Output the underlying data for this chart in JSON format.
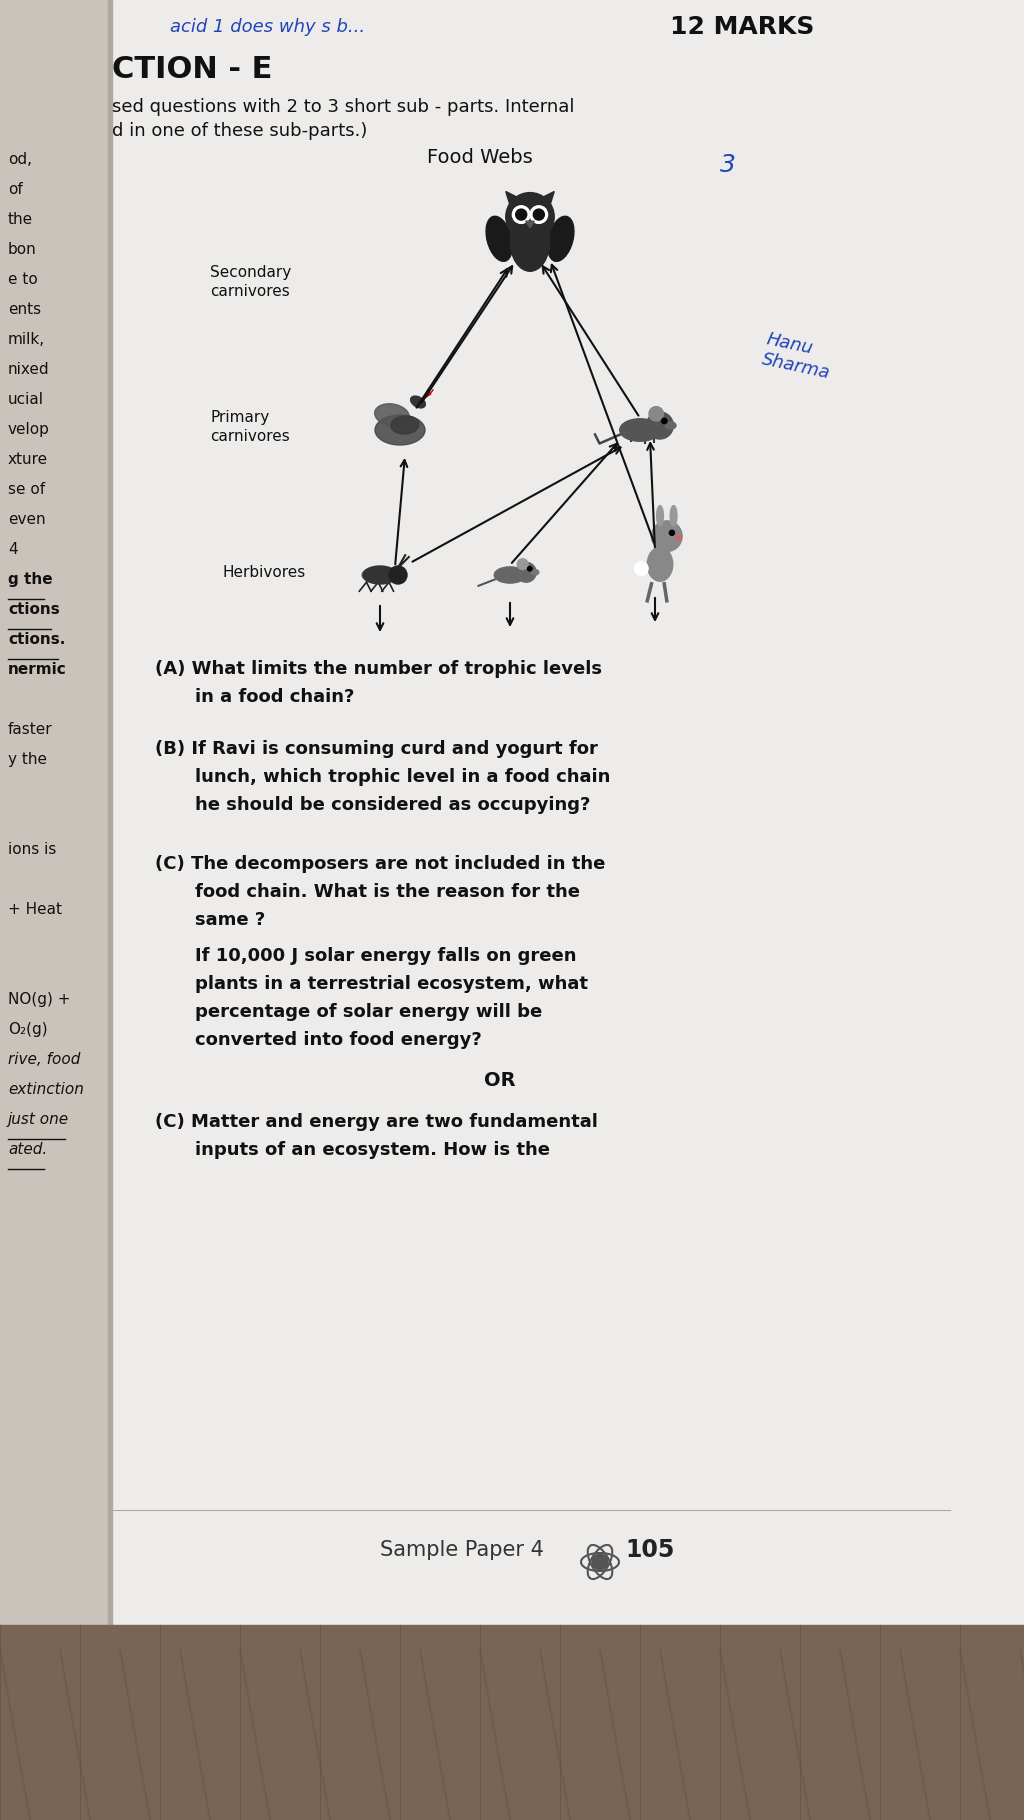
{
  "bg_color_bottom": "#8a7060",
  "paper_bg": "#eeede8",
  "left_strip_color": "#c5bdb5",
  "marks_text": "12 MARKS",
  "section_title": "CTION - E",
  "section_desc_line1": "sed questions with 2 to 3 short sub - parts. Internal",
  "section_desc_line2": "d in one of these sub-parts.)",
  "left_margin_words": [
    "od,",
    "of",
    "the",
    "bon",
    "e to",
    "ents",
    "milk,",
    "nixed",
    "ucial",
    "velop",
    "xture",
    "se of",
    "even",
    "4",
    "g the",
    "ctions",
    "ctions.",
    "nermic",
    "",
    "faster",
    "y the",
    "",
    "",
    "ions is",
    "",
    "+ Heat",
    "",
    "",
    "NO(g) +",
    "O₂(g)",
    "rive, food",
    "extinction",
    "just one",
    "ated."
  ],
  "food_web_title": "Food Webs",
  "handwriting_top": "acid 1 does why s b...",
  "handwriting_right1": "Hanu",
  "handwriting_right2": "Sharma",
  "handwriting_num": "3",
  "label_secondary": "Secondary\ncarnivores",
  "label_primary": "Primary\ncarnivores",
  "label_herbivores": "Herbivores",
  "qA_line1": "(A) What limits the number of trophic levels",
  "qA_line2": "in a food chain?",
  "qB_line1": "(B) If Ravi is consuming curd and yogurt for",
  "qB_line2": "lunch, which trophic level in a food chain",
  "qB_line3": "he should be considered as occupying?",
  "qC1_line1": "(C) The decomposers are not included in the",
  "qC1_line2": "food chain. What is the reason for the",
  "qC1_line3": "same ?",
  "extra_line1": "If 10,000 J solar energy falls on green",
  "extra_line2": "plants in a terrestrial ecosystem, what",
  "extra_line3": "percentage of solar energy will be",
  "extra_line4": "converted into food energy?",
  "or_text": "OR",
  "qC2_line1": "(C) Matter and energy are two fundamental",
  "qC2_line2": "inputs of an ecosystem. How is the",
  "footer_text": "Sample Paper 4",
  "footer_page": "105",
  "text_color": "#111111",
  "blue_color": "#2244bb"
}
